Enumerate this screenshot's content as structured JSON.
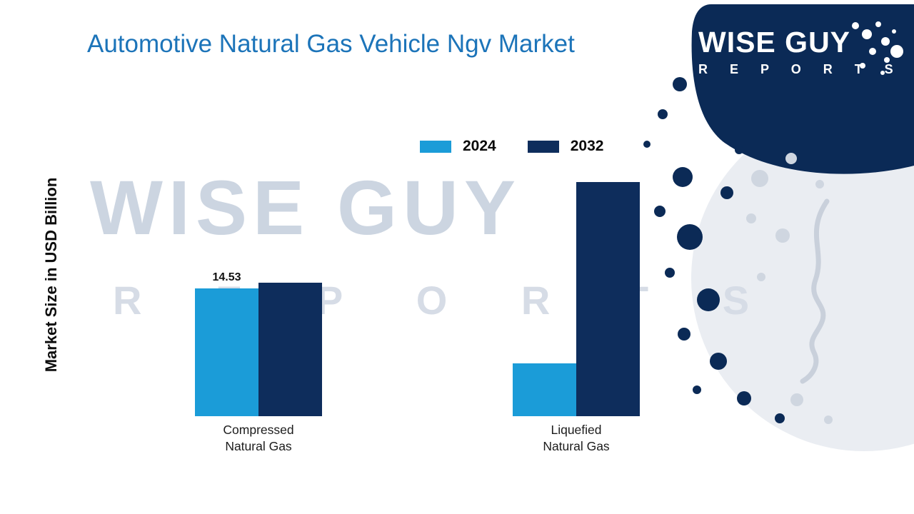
{
  "page": {
    "title": "Automotive Natural Gas Vehicle Ngv Market"
  },
  "chart_data": {
    "type": "bar",
    "title": "Automotive Natural Gas Vehicle Ngv Market",
    "xlabel": "",
    "ylabel": "Market Size in USD Billion",
    "units": "USD Billion",
    "categories": [
      "Compressed Natural Gas",
      "Liquefied Natural Gas"
    ],
    "series": [
      {
        "name": "2024",
        "color": "#1b9cd8",
        "values": [
          14.53,
          6.0
        ]
      },
      {
        "name": "2032",
        "color": "#0e2d5c",
        "values": [
          15.2,
          26.7
        ]
      }
    ],
    "annotations": [
      {
        "text": "14.53",
        "category": "Compressed Natural Gas",
        "series": "2024"
      }
    ],
    "legend_position": "top-center",
    "grid": false,
    "ylim": [
      0,
      28
    ]
  },
  "legend": {
    "items": [
      {
        "label": "2024",
        "color": "#1b9cd8"
      },
      {
        "label": "2032",
        "color": "#0e2d5c"
      }
    ]
  },
  "watermark": {
    "line1": "WISE GUY",
    "line2": "R E P O R T S"
  },
  "logo": {
    "line1": "WISE GUY",
    "line2": "R E P O R T S"
  },
  "colors": {
    "title": "#1c74b9",
    "series_2024": "#1b9cd8",
    "series_2032": "#0e2d5c",
    "logo_background": "#0b2a56",
    "watermark": "#ccd5e1"
  }
}
